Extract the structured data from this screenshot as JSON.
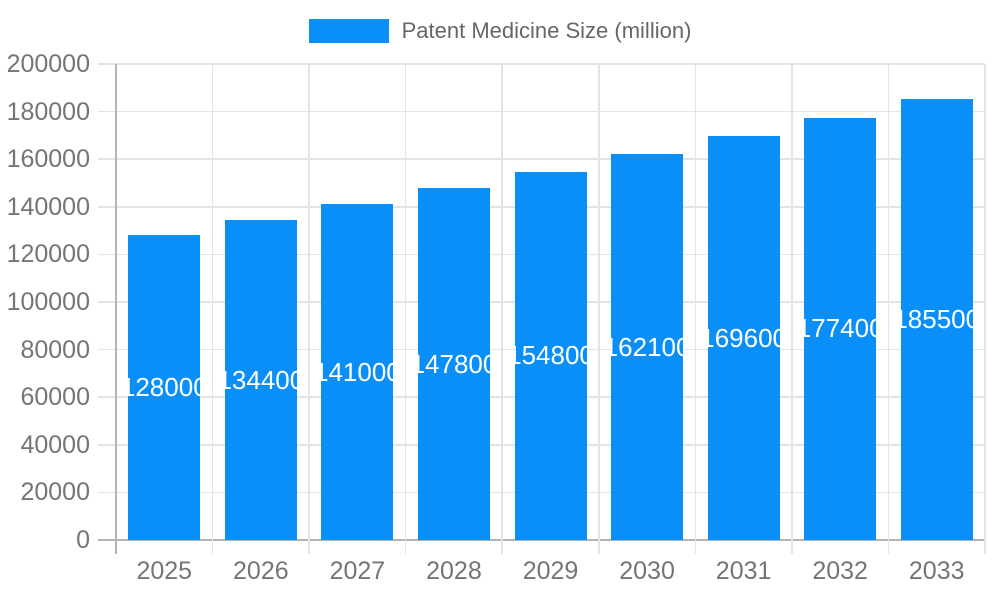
{
  "legend": {
    "label": "Patent Medicine Size (million)"
  },
  "chart_data": {
    "type": "bar",
    "title": "Patent Medicine Size (million)",
    "categories": [
      "2025",
      "2026",
      "2027",
      "2028",
      "2029",
      "2030",
      "2031",
      "2032",
      "2033"
    ],
    "values": [
      128000,
      134400,
      141000,
      147800,
      154800,
      162100,
      169600,
      177400,
      185500
    ],
    "xlabel": "",
    "ylabel": "",
    "ylim": [
      0,
      200000
    ],
    "ytick_step": 20000,
    "ytick_labels": [
      "0",
      "20000",
      "40000",
      "60000",
      "80000",
      "100000",
      "120000",
      "140000",
      "160000",
      "180000",
      "200000"
    ],
    "grid": true,
    "legend_position": "top",
    "bar_labels_inside": true,
    "colors": {
      "bar": "#0a8ff9",
      "bar_label": "#ffffff",
      "tick_label": "#757575",
      "legend_label": "#666666",
      "grid_line": "#e4e4e4",
      "axis_line": "#b3b3b3",
      "background": "#ffffff"
    }
  }
}
